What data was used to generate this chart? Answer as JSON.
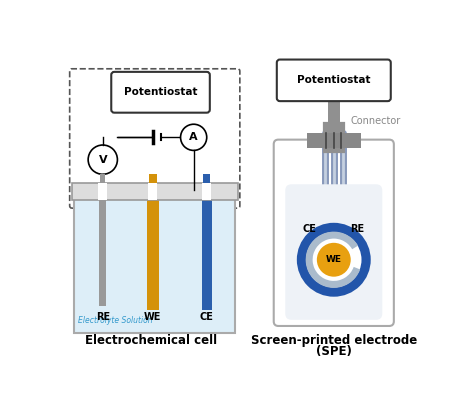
{
  "bg_color": "#ffffff",
  "left_panel": {
    "title": "Electrochemical cell",
    "potentiostat_label": "Potentiostat",
    "electrolyte_label": "Electrolyte Solution",
    "re_color": "#999999",
    "we_color": "#d4920a",
    "ce_color": "#2b5fad",
    "solution_color": "#ddeef8",
    "solution_border": "#aaaaaa",
    "platform_color": "#dddddd",
    "platform_border": "#999999"
  },
  "right_panel": {
    "title": "Screen-printed electrode",
    "title2": "(SPE)",
    "potentiostat_label": "Potentiostat",
    "connector_label": "Connector",
    "we_color": "#e8a010",
    "ce_color": "#2255aa",
    "re_color": "#aabbcc",
    "body_color": "#eef2f7",
    "body_border": "#cccccc",
    "connector_color": "#888888",
    "wire_color": "#8899bb",
    "cap_color": "#888888"
  }
}
